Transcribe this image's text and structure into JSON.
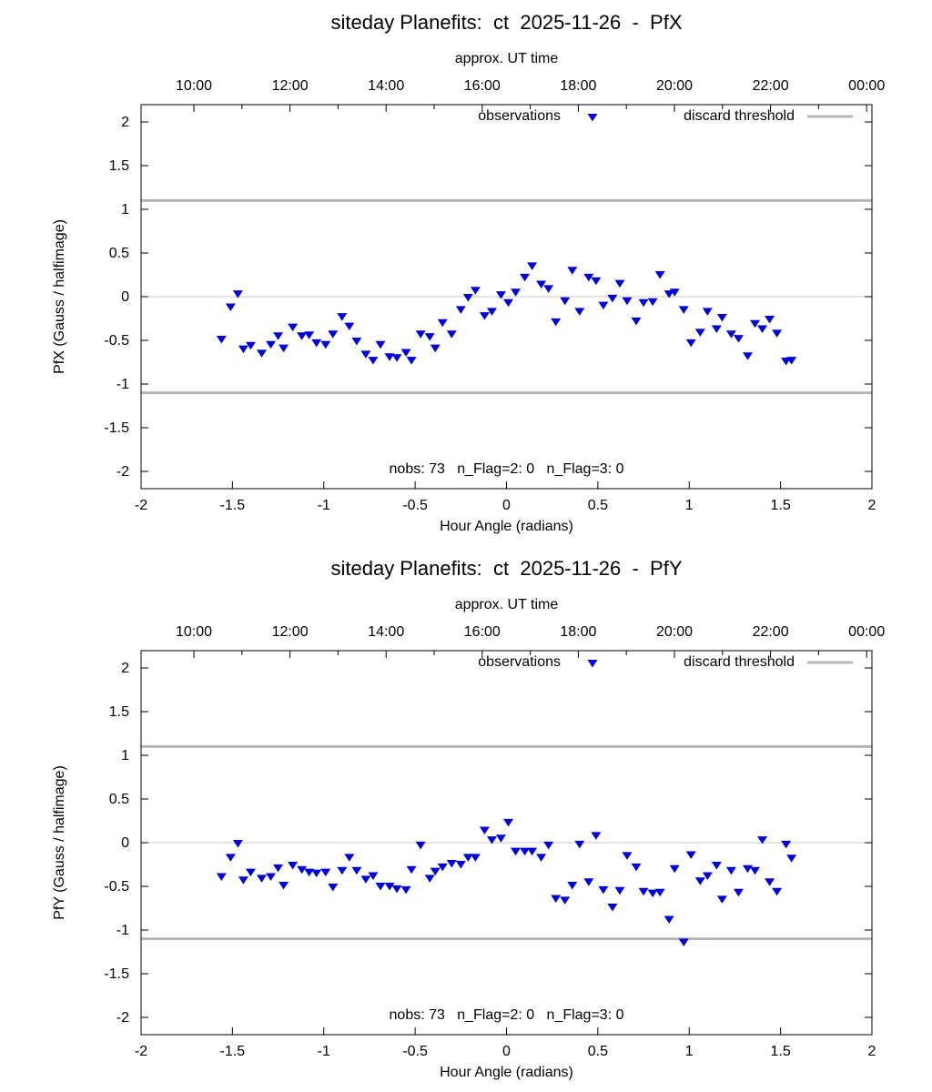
{
  "colors": {
    "marker": "#0000d8",
    "threshold": "#b4b4b4",
    "zero_line": "#c8c8c8",
    "frame": "#000000",
    "background": "#ffffff"
  },
  "chart_data": [
    {
      "type": "scatter",
      "title": "siteday Planefits:  ct  2025-11-26  -  PfX",
      "x2label": "approx. UT time",
      "x2ticks": [
        "10:00",
        "12:00",
        "14:00",
        "16:00",
        "18:00",
        "20:00",
        "22:00",
        "00:00"
      ],
      "xlabel": "Hour Angle (radians)",
      "ylabel": "PfX (Gauss / halfimage)",
      "xlim": [
        -2,
        2
      ],
      "ylim": [
        -2.2,
        2.2
      ],
      "xticks": [
        "-2",
        "-1.5",
        "-1",
        "-0.5",
        "0",
        "0.5",
        "1",
        "1.5",
        "2"
      ],
      "yticks": [
        "-2",
        "-1.5",
        "-1",
        "-0.5",
        "0",
        "0.5",
        "1",
        "1.5",
        "2"
      ],
      "zero_line": 0,
      "threshold_lines": [
        1.1,
        -1.1
      ],
      "legend": [
        "observations",
        "discard threshold"
      ],
      "legend_position": "top-inside",
      "grid": false,
      "annotation": "nobs: 73   n_Flag=2: 0   n_Flag=3: 0",
      "series": [
        {
          "name": "observations",
          "marker": "triangle-down",
          "points": [
            [
              -1.56,
              -0.49
            ],
            [
              -1.51,
              -0.12
            ],
            [
              -1.47,
              0.03
            ],
            [
              -1.44,
              -0.6
            ],
            [
              -1.4,
              -0.56
            ],
            [
              -1.34,
              -0.65
            ],
            [
              -1.29,
              -0.55
            ],
            [
              -1.25,
              -0.45
            ],
            [
              -1.22,
              -0.59
            ],
            [
              -1.17,
              -0.35
            ],
            [
              -1.12,
              -0.45
            ],
            [
              -1.08,
              -0.44
            ],
            [
              -1.04,
              -0.53
            ],
            [
              -0.99,
              -0.55
            ],
            [
              -0.95,
              -0.43
            ],
            [
              -0.9,
              -0.23
            ],
            [
              -0.86,
              -0.34
            ],
            [
              -0.82,
              -0.51
            ],
            [
              -0.77,
              -0.66
            ],
            [
              -0.73,
              -0.73
            ],
            [
              -0.69,
              -0.55
            ],
            [
              -0.64,
              -0.69
            ],
            [
              -0.6,
              -0.7
            ],
            [
              -0.55,
              -0.64
            ],
            [
              -0.52,
              -0.73
            ],
            [
              -0.47,
              -0.43
            ],
            [
              -0.42,
              -0.46
            ],
            [
              -0.39,
              -0.59
            ],
            [
              -0.35,
              -0.3
            ],
            [
              -0.3,
              -0.43
            ],
            [
              -0.25,
              -0.15
            ],
            [
              -0.21,
              -0.01
            ],
            [
              -0.17,
              0.07
            ],
            [
              -0.12,
              -0.22
            ],
            [
              -0.08,
              -0.17
            ],
            [
              -0.03,
              0.02
            ],
            [
              0.01,
              -0.07
            ],
            [
              0.05,
              0.05
            ],
            [
              0.1,
              0.22
            ],
            [
              0.14,
              0.35
            ],
            [
              0.19,
              0.14
            ],
            [
              0.23,
              0.09
            ],
            [
              0.27,
              -0.29
            ],
            [
              0.32,
              -0.05
            ],
            [
              0.36,
              0.3
            ],
            [
              0.4,
              -0.17
            ],
            [
              0.45,
              0.22
            ],
            [
              0.49,
              0.18
            ],
            [
              0.53,
              -0.1
            ],
            [
              0.58,
              -0.02
            ],
            [
              0.62,
              0.15
            ],
            [
              0.66,
              -0.05
            ],
            [
              0.71,
              -0.28
            ],
            [
              0.75,
              -0.07
            ],
            [
              0.8,
              -0.06
            ],
            [
              0.84,
              0.25
            ],
            [
              0.89,
              0.03
            ],
            [
              0.92,
              0.05
            ],
            [
              0.97,
              -0.15
            ],
            [
              1.01,
              -0.53
            ],
            [
              1.06,
              -0.41
            ],
            [
              1.1,
              -0.17
            ],
            [
              1.15,
              -0.37
            ],
            [
              1.18,
              -0.24
            ],
            [
              1.23,
              -0.43
            ],
            [
              1.27,
              -0.48
            ],
            [
              1.32,
              -0.68
            ],
            [
              1.36,
              -0.31
            ],
            [
              1.4,
              -0.37
            ],
            [
              1.44,
              -0.26
            ],
            [
              1.48,
              -0.42
            ],
            [
              1.53,
              -0.74
            ],
            [
              1.56,
              -0.73
            ]
          ]
        }
      ]
    },
    {
      "type": "scatter",
      "title": "siteday Planefits:  ct  2025-11-26  -  PfY",
      "x2label": "approx. UT time",
      "x2ticks": [
        "10:00",
        "12:00",
        "14:00",
        "16:00",
        "18:00",
        "20:00",
        "22:00",
        "00:00"
      ],
      "xlabel": "Hour Angle (radians)",
      "ylabel": "PfY (Gauss / halfimage)",
      "xlim": [
        -2,
        2
      ],
      "ylim": [
        -2.2,
        2.2
      ],
      "xticks": [
        "-2",
        "-1.5",
        "-1",
        "-0.5",
        "0",
        "0.5",
        "1",
        "1.5",
        "2"
      ],
      "yticks": [
        "-2",
        "-1.5",
        "-1",
        "-0.5",
        "0",
        "0.5",
        "1",
        "1.5",
        "2"
      ],
      "zero_line": 0,
      "threshold_lines": [
        1.1,
        -1.1
      ],
      "legend": [
        "observations",
        "discard threshold"
      ],
      "legend_position": "top-inside",
      "grid": false,
      "annotation": "nobs: 73   n_Flag=2: 0   n_Flag=3: 0",
      "series": [
        {
          "name": "observations",
          "marker": "triangle-down",
          "points": [
            [
              -1.56,
              -0.39
            ],
            [
              -1.51,
              -0.17
            ],
            [
              -1.47,
              -0.01
            ],
            [
              -1.44,
              -0.43
            ],
            [
              -1.4,
              -0.34
            ],
            [
              -1.34,
              -0.41
            ],
            [
              -1.29,
              -0.39
            ],
            [
              -1.25,
              -0.29
            ],
            [
              -1.22,
              -0.49
            ],
            [
              -1.17,
              -0.26
            ],
            [
              -1.12,
              -0.31
            ],
            [
              -1.08,
              -0.34
            ],
            [
              -1.04,
              -0.35
            ],
            [
              -0.99,
              -0.34
            ],
            [
              -0.95,
              -0.51
            ],
            [
              -0.9,
              -0.32
            ],
            [
              -0.86,
              -0.17
            ],
            [
              -0.82,
              -0.32
            ],
            [
              -0.77,
              -0.42
            ],
            [
              -0.73,
              -0.38
            ],
            [
              -0.69,
              -0.5
            ],
            [
              -0.64,
              -0.5
            ],
            [
              -0.6,
              -0.53
            ],
            [
              -0.55,
              -0.54
            ],
            [
              -0.52,
              -0.31
            ],
            [
              -0.47,
              -0.03
            ],
            [
              -0.42,
              -0.41
            ],
            [
              -0.39,
              -0.33
            ],
            [
              -0.35,
              -0.28
            ],
            [
              -0.3,
              -0.24
            ],
            [
              -0.25,
              -0.25
            ],
            [
              -0.21,
              -0.17
            ],
            [
              -0.17,
              -0.17
            ],
            [
              -0.12,
              0.14
            ],
            [
              -0.08,
              0.03
            ],
            [
              -0.03,
              0.05
            ],
            [
              0.01,
              0.23
            ],
            [
              0.05,
              -0.1
            ],
            [
              0.1,
              -0.1
            ],
            [
              0.14,
              -0.1
            ],
            [
              0.19,
              -0.17
            ],
            [
              0.23,
              -0.03
            ],
            [
              0.27,
              -0.64
            ],
            [
              0.32,
              -0.66
            ],
            [
              0.36,
              -0.49
            ],
            [
              0.4,
              -0.02
            ],
            [
              0.45,
              -0.45
            ],
            [
              0.49,
              0.08
            ],
            [
              0.53,
              -0.54
            ],
            [
              0.58,
              -0.74
            ],
            [
              0.62,
              -0.55
            ],
            [
              0.66,
              -0.15
            ],
            [
              0.71,
              -0.28
            ],
            [
              0.75,
              -0.56
            ],
            [
              0.8,
              -0.58
            ],
            [
              0.84,
              -0.57
            ],
            [
              0.89,
              -0.88
            ],
            [
              0.92,
              -0.3
            ],
            [
              0.97,
              -1.14
            ],
            [
              1.01,
              -0.14
            ],
            [
              1.06,
              -0.44
            ],
            [
              1.1,
              -0.38
            ],
            [
              1.15,
              -0.26
            ],
            [
              1.18,
              -0.65
            ],
            [
              1.23,
              -0.32
            ],
            [
              1.27,
              -0.57
            ],
            [
              1.32,
              -0.3
            ],
            [
              1.36,
              -0.32
            ],
            [
              1.4,
              0.03
            ],
            [
              1.44,
              -0.45
            ],
            [
              1.48,
              -0.56
            ],
            [
              1.53,
              -0.02
            ],
            [
              1.56,
              -0.18
            ]
          ]
        }
      ]
    }
  ]
}
